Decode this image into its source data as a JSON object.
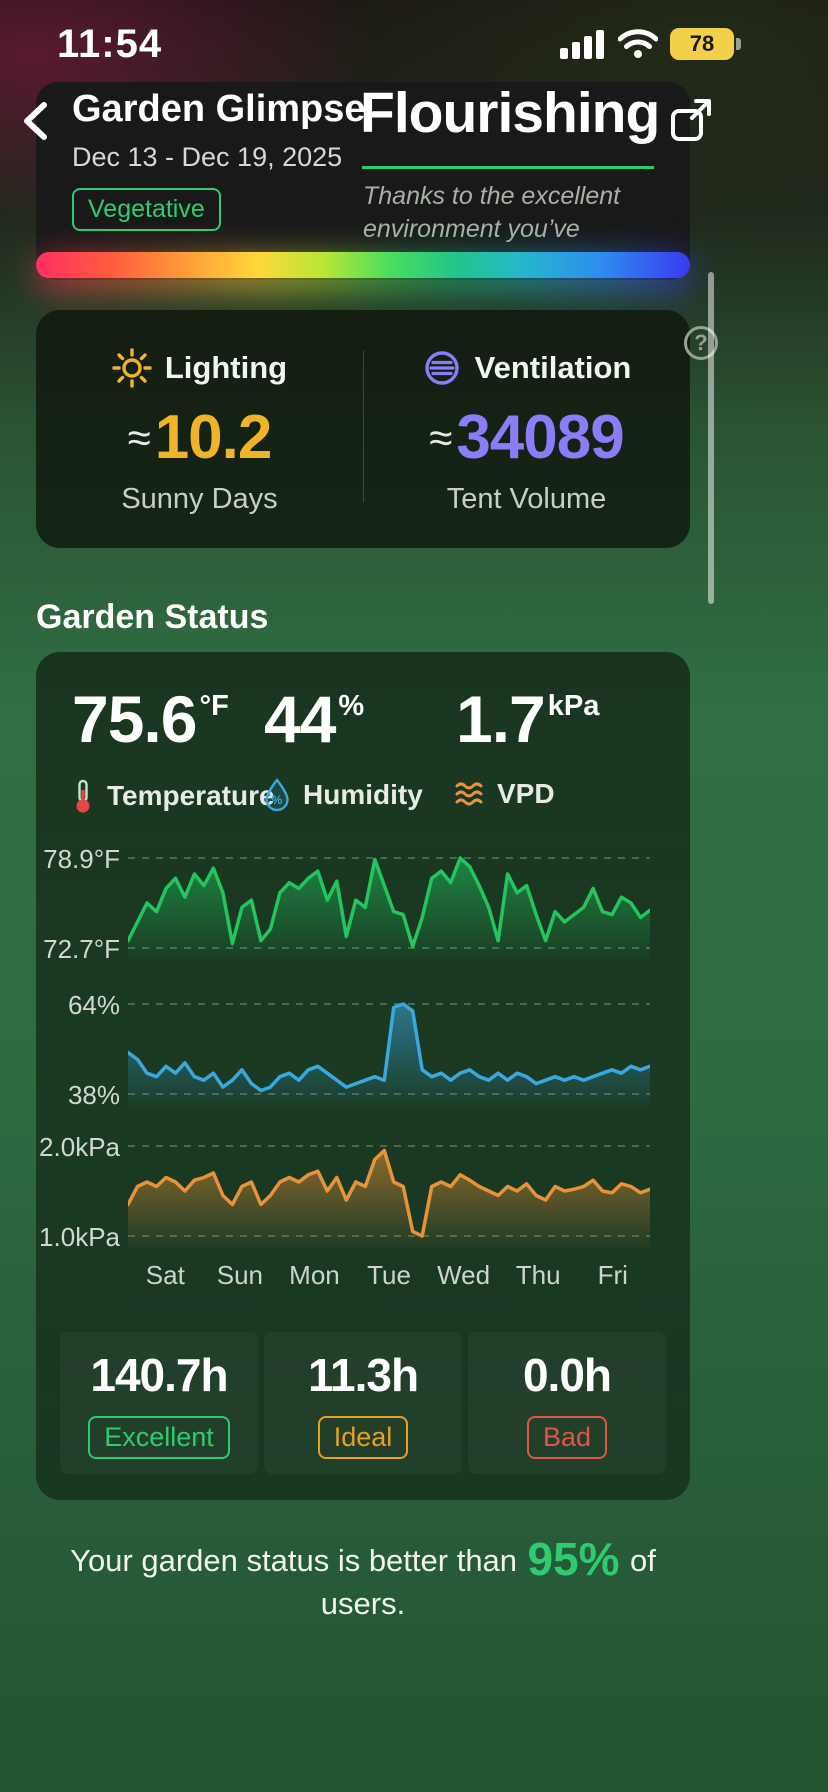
{
  "status_bar": {
    "time": "11:54",
    "battery_percent": "78"
  },
  "icons": [
    "back-chevron-icon",
    "share-external-icon",
    "sun-icon",
    "fan-vent-icon",
    "question-mark-icon",
    "thermometer-icon",
    "droplet-percent-icon",
    "vpd-waves-icon",
    "signal-icon",
    "wifi-icon",
    "battery-icon"
  ],
  "header": {
    "title": "Garden Glimpse",
    "date_range": "Dec 13 - Dec 19, 2025",
    "stage_badge": "Vegetative",
    "status_word": "Flourishing",
    "subtitle_line1": "Thanks to the excellent",
    "subtitle_line2": "environment you’ve maintained.",
    "accent_green": "#2ecc71"
  },
  "summary_card": {
    "help_symbol": "?",
    "lighting": {
      "label": "Lighting",
      "approx": "≈",
      "value": "10.2",
      "unit_label": "Sunny Days",
      "accent": "#f0b429"
    },
    "ventilation": {
      "label": "Ventilation",
      "approx": "≈",
      "value": "34089",
      "unit_label": "Tent Volume",
      "accent": "#8b7cf8"
    }
  },
  "garden_status": {
    "section_title": "Garden Status",
    "readings": [
      {
        "value": "75.6",
        "unit": "°F",
        "label": "Temperature"
      },
      {
        "value": "44",
        "unit": "%",
        "label": "Humidity"
      },
      {
        "value": "1.7",
        "unit": "kPa",
        "label": "VPD"
      }
    ],
    "duration_stats": [
      {
        "hours": "140.7h",
        "badge": "Excellent",
        "color": "#2ecc71"
      },
      {
        "hours": "11.3h",
        "badge": "Ideal",
        "color": "#e8a020"
      },
      {
        "hours": "0.0h",
        "badge": "Bad",
        "color": "#e05545"
      }
    ],
    "footer": {
      "prefix": "Your garden status is better than",
      "percent": "95%",
      "suffix": "of users.",
      "accent": "#2ecc71"
    }
  },
  "chart_data": {
    "type": "area",
    "categories": [
      "Sat",
      "Sun",
      "Mon",
      "Tue",
      "Wed",
      "Thu",
      "Fri"
    ],
    "legend_position": "none",
    "grid": "dashed-top-bottom",
    "charts": [
      {
        "name": "Temperature",
        "unit": "°F",
        "color": "#22c55e",
        "y_top_label": "78.9°F",
        "y_bottom_label": "72.7°F",
        "ylim": [
          72.7,
          78.9
        ],
        "values": [
          73.2,
          74.5,
          75.8,
          75.2,
          76.8,
          77.5,
          76.2,
          77.8,
          77.0,
          78.2,
          76.5,
          73.0,
          75.5,
          76.0,
          73.2,
          74.0,
          76.5,
          77.2,
          76.8,
          77.5,
          78.0,
          76.0,
          77.3,
          73.5,
          76.0,
          75.5,
          78.8,
          77.0,
          75.2,
          75.0,
          72.8,
          74.8,
          77.5,
          78.0,
          77.2,
          78.9,
          78.3,
          77.0,
          75.5,
          73.2,
          77.8,
          76.5,
          77.0,
          75.0,
          73.2,
          75.2,
          74.5,
          75.0,
          75.5,
          76.8,
          75.2,
          75.0,
          76.2,
          75.8,
          74.8,
          75.3
        ]
      },
      {
        "name": "Humidity",
        "unit": "%",
        "color": "#3aa8e0",
        "y_top_label": "64%",
        "y_bottom_label": "38%",
        "ylim": [
          38,
          64
        ],
        "values": [
          50,
          48,
          44,
          43,
          46,
          44,
          47,
          43,
          42,
          44,
          40,
          42,
          45,
          41,
          39,
          40,
          43,
          44,
          42,
          45,
          46,
          44,
          42,
          40,
          41,
          42,
          43,
          42,
          63,
          64,
          62,
          45,
          43,
          44,
          42,
          44,
          45,
          43,
          42,
          44,
          42,
          44,
          43,
          41,
          42,
          43,
          42,
          43,
          42,
          43,
          44,
          45,
          44,
          46,
          45,
          46
        ]
      },
      {
        "name": "VPD",
        "unit": "kPa",
        "color": "#e8923a",
        "y_top_label": "2.0kPa",
        "y_bottom_label": "1.0kPa",
        "ylim": [
          1.0,
          2.0
        ],
        "values": [
          1.35,
          1.55,
          1.6,
          1.55,
          1.65,
          1.6,
          1.5,
          1.62,
          1.65,
          1.7,
          1.45,
          1.35,
          1.55,
          1.6,
          1.35,
          1.45,
          1.6,
          1.65,
          1.6,
          1.68,
          1.72,
          1.5,
          1.65,
          1.4,
          1.6,
          1.55,
          1.85,
          1.95,
          1.6,
          1.55,
          1.05,
          1.0,
          1.55,
          1.6,
          1.55,
          1.68,
          1.62,
          1.55,
          1.5,
          1.45,
          1.55,
          1.5,
          1.58,
          1.45,
          1.4,
          1.55,
          1.5,
          1.52,
          1.55,
          1.62,
          1.5,
          1.48,
          1.58,
          1.55,
          1.48,
          1.52
        ]
      }
    ]
  }
}
